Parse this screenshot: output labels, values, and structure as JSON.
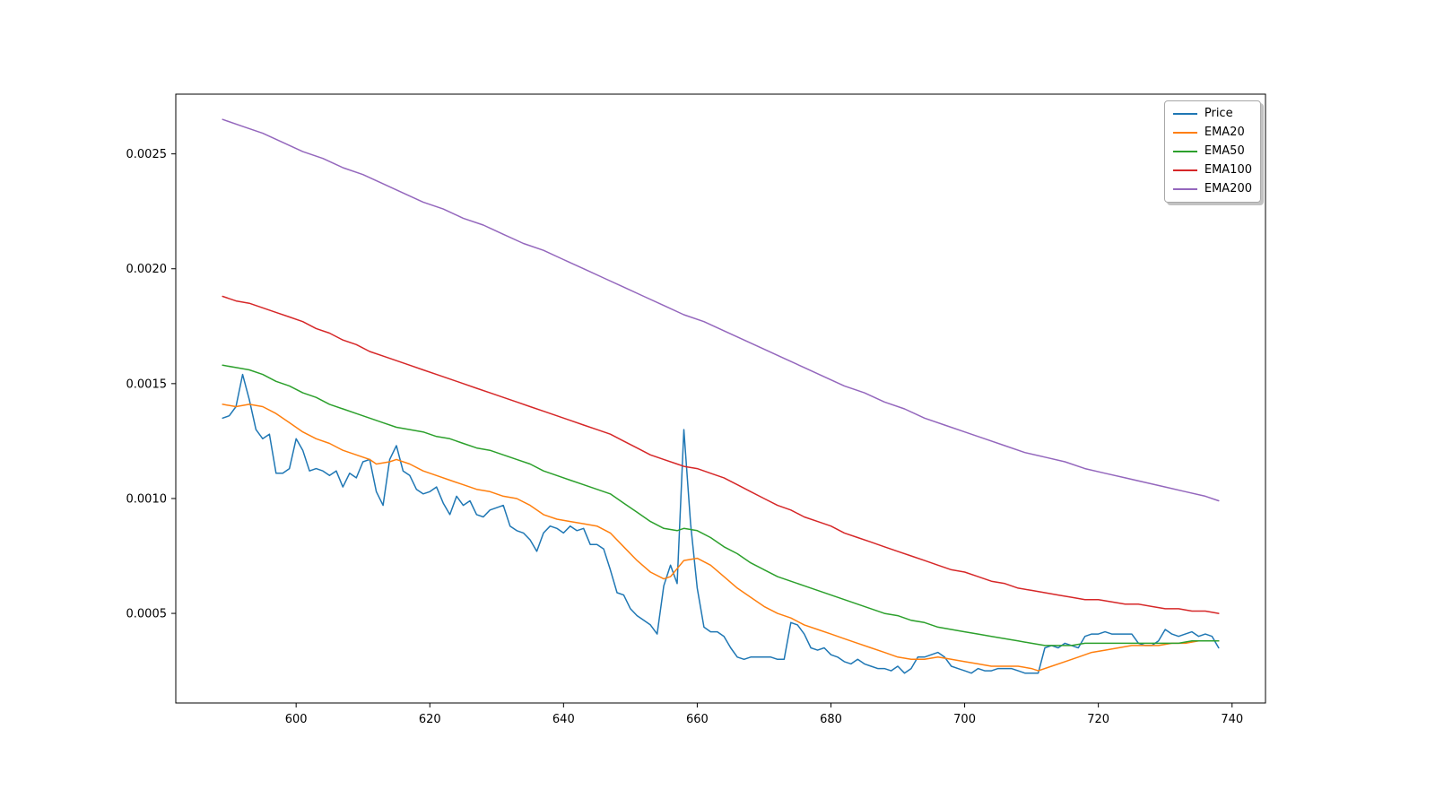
{
  "figure": {
    "background": "#ffffff",
    "plot_border_color": "#000000"
  },
  "legend": {
    "position": "upper right",
    "items": [
      {
        "label": "Price",
        "color": "#1f77b4"
      },
      {
        "label": "EMA20",
        "color": "#ff7f0e"
      },
      {
        "label": "EMA50",
        "color": "#2ca02c"
      },
      {
        "label": "EMA100",
        "color": "#d62728"
      },
      {
        "label": "EMA200",
        "color": "#9467bd"
      }
    ]
  },
  "chart_data": {
    "type": "line",
    "title": "",
    "xlabel": "",
    "ylabel": "",
    "grid": false,
    "legend_position": "upper right",
    "xlim": [
      582,
      745
    ],
    "ylim": [
      0.00011,
      0.00276
    ],
    "x_ticks": [
      600,
      620,
      640,
      660,
      680,
      700,
      720,
      740
    ],
    "y_ticks": [
      0.0005,
      0.001,
      0.0015,
      0.002,
      0.0025
    ],
    "series": [
      {
        "name": "Price",
        "color": "#1f77b4",
        "x_start": 589,
        "x_step": 1,
        "y": [
          0.00135,
          0.00136,
          0.0014,
          0.00154,
          0.00143,
          0.0013,
          0.00126,
          0.00128,
          0.00111,
          0.00111,
          0.00113,
          0.00126,
          0.00121,
          0.00112,
          0.00113,
          0.00112,
          0.0011,
          0.00112,
          0.00105,
          0.00111,
          0.00109,
          0.00116,
          0.00117,
          0.00103,
          0.00097,
          0.00117,
          0.00123,
          0.00112,
          0.0011,
          0.00104,
          0.00102,
          0.00103,
          0.00105,
          0.00098,
          0.00093,
          0.00101,
          0.00097,
          0.00099,
          0.00093,
          0.00092,
          0.00095,
          0.00096,
          0.00097,
          0.00088,
          0.00086,
          0.00085,
          0.00082,
          0.00077,
          0.00085,
          0.00088,
          0.00087,
          0.00085,
          0.00088,
          0.00086,
          0.00087,
          0.0008,
          0.0008,
          0.00078,
          0.00069,
          0.00059,
          0.00058,
          0.00052,
          0.00049,
          0.00047,
          0.00045,
          0.00041,
          0.00062,
          0.00071,
          0.00063,
          0.0013,
          0.00089,
          0.00061,
          0.00044,
          0.00042,
          0.00042,
          0.0004,
          0.00035,
          0.00031,
          0.0003,
          0.00031,
          0.00031,
          0.00031,
          0.00031,
          0.0003,
          0.0003,
          0.00046,
          0.00045,
          0.00041,
          0.00035,
          0.00034,
          0.00035,
          0.00032,
          0.00031,
          0.00029,
          0.00028,
          0.0003,
          0.00028,
          0.00027,
          0.00026,
          0.00026,
          0.00025,
          0.00027,
          0.00024,
          0.00026,
          0.00031,
          0.00031,
          0.00032,
          0.00033,
          0.00031,
          0.00027,
          0.00026,
          0.00025,
          0.00024,
          0.00026,
          0.00025,
          0.00025,
          0.00026,
          0.00026,
          0.00026,
          0.00025,
          0.00024,
          0.00024,
          0.00024,
          0.00035,
          0.00036,
          0.00035,
          0.00037,
          0.00036,
          0.00035,
          0.0004,
          0.00041,
          0.00041,
          0.00042,
          0.00041,
          0.00041,
          0.00041,
          0.00041,
          0.00037,
          0.00036,
          0.00036,
          0.00038,
          0.00043,
          0.00041,
          0.0004,
          0.00041,
          0.00042,
          0.0004,
          0.00041,
          0.0004,
          0.00035
        ]
      },
      {
        "name": "EMA20",
        "color": "#ff7f0e",
        "x": [
          589,
          591,
          593,
          595,
          597,
          599,
          601,
          603,
          605,
          607,
          609,
          611,
          612,
          614,
          615,
          617,
          619,
          621,
          623,
          625,
          627,
          629,
          631,
          633,
          635,
          637,
          639,
          641,
          643,
          645,
          647,
          649,
          651,
          653,
          655,
          656,
          658,
          660,
          662,
          664,
          666,
          668,
          670,
          672,
          674,
          676,
          678,
          680,
          682,
          684,
          686,
          688,
          690,
          692,
          694,
          696,
          698,
          700,
          702,
          704,
          706,
          708,
          710,
          711,
          713,
          715,
          717,
          719,
          721,
          723,
          725,
          727,
          729,
          731,
          733,
          735,
          738
        ],
        "y": [
          0.00141,
          0.0014,
          0.00141,
          0.0014,
          0.00137,
          0.00133,
          0.00129,
          0.00126,
          0.00124,
          0.00121,
          0.00119,
          0.00117,
          0.00115,
          0.00116,
          0.00117,
          0.00115,
          0.00112,
          0.0011,
          0.00108,
          0.00106,
          0.00104,
          0.00103,
          0.00101,
          0.001,
          0.00097,
          0.00093,
          0.00091,
          0.0009,
          0.00089,
          0.00088,
          0.00085,
          0.00079,
          0.00073,
          0.00068,
          0.00065,
          0.00066,
          0.00073,
          0.00074,
          0.00071,
          0.00066,
          0.00061,
          0.00057,
          0.00053,
          0.0005,
          0.00048,
          0.00045,
          0.00043,
          0.00041,
          0.00039,
          0.00037,
          0.00035,
          0.00033,
          0.00031,
          0.0003,
          0.0003,
          0.00031,
          0.0003,
          0.00029,
          0.00028,
          0.00027,
          0.00027,
          0.00027,
          0.00026,
          0.00025,
          0.00027,
          0.00029,
          0.00031,
          0.00033,
          0.00034,
          0.00035,
          0.00036,
          0.00036,
          0.00036,
          0.00037,
          0.00037,
          0.00038,
          0.00038
        ]
      },
      {
        "name": "EMA50",
        "color": "#2ca02c",
        "x": [
          589,
          591,
          593,
          595,
          597,
          599,
          601,
          603,
          605,
          607,
          609,
          611,
          613,
          615,
          617,
          619,
          621,
          623,
          625,
          627,
          629,
          631,
          633,
          635,
          637,
          639,
          641,
          643,
          645,
          647,
          649,
          651,
          653,
          655,
          657,
          658,
          660,
          662,
          664,
          666,
          668,
          670,
          672,
          674,
          676,
          678,
          680,
          682,
          684,
          686,
          688,
          690,
          692,
          694,
          696,
          698,
          700,
          702,
          704,
          706,
          708,
          710,
          712,
          714,
          716,
          718,
          720,
          722,
          724,
          726,
          728,
          730,
          732,
          734,
          736,
          738
        ],
        "y": [
          0.00158,
          0.00157,
          0.00156,
          0.00154,
          0.00151,
          0.00149,
          0.00146,
          0.00144,
          0.00141,
          0.00139,
          0.00137,
          0.00135,
          0.00133,
          0.00131,
          0.0013,
          0.00129,
          0.00127,
          0.00126,
          0.00124,
          0.00122,
          0.00121,
          0.00119,
          0.00117,
          0.00115,
          0.00112,
          0.0011,
          0.00108,
          0.00106,
          0.00104,
          0.00102,
          0.00098,
          0.00094,
          0.0009,
          0.00087,
          0.00086,
          0.00087,
          0.00086,
          0.00083,
          0.00079,
          0.00076,
          0.00072,
          0.00069,
          0.00066,
          0.00064,
          0.00062,
          0.0006,
          0.00058,
          0.00056,
          0.00054,
          0.00052,
          0.0005,
          0.00049,
          0.00047,
          0.00046,
          0.00044,
          0.00043,
          0.00042,
          0.00041,
          0.0004,
          0.00039,
          0.00038,
          0.00037,
          0.00036,
          0.00036,
          0.00036,
          0.00037,
          0.00037,
          0.00037,
          0.00037,
          0.00037,
          0.00037,
          0.00037,
          0.00037,
          0.00038,
          0.00038,
          0.00038
        ]
      },
      {
        "name": "EMA100",
        "color": "#d62728",
        "x": [
          589,
          591,
          593,
          595,
          597,
          599,
          601,
          603,
          605,
          607,
          609,
          611,
          613,
          615,
          617,
          619,
          621,
          623,
          625,
          627,
          629,
          631,
          633,
          635,
          637,
          639,
          641,
          643,
          645,
          647,
          649,
          651,
          653,
          655,
          657,
          658,
          660,
          662,
          664,
          666,
          668,
          670,
          672,
          674,
          676,
          678,
          680,
          682,
          684,
          686,
          688,
          690,
          692,
          694,
          696,
          698,
          700,
          702,
          704,
          706,
          708,
          710,
          712,
          714,
          716,
          718,
          720,
          722,
          724,
          726,
          728,
          730,
          732,
          734,
          736,
          738
        ],
        "y": [
          0.00188,
          0.00186,
          0.00185,
          0.00183,
          0.00181,
          0.00179,
          0.00177,
          0.00174,
          0.00172,
          0.00169,
          0.00167,
          0.00164,
          0.00162,
          0.0016,
          0.00158,
          0.00156,
          0.00154,
          0.00152,
          0.0015,
          0.00148,
          0.00146,
          0.00144,
          0.00142,
          0.0014,
          0.00138,
          0.00136,
          0.00134,
          0.00132,
          0.0013,
          0.00128,
          0.00125,
          0.00122,
          0.00119,
          0.00117,
          0.00115,
          0.00114,
          0.00113,
          0.00111,
          0.00109,
          0.00106,
          0.00103,
          0.001,
          0.00097,
          0.00095,
          0.00092,
          0.0009,
          0.00088,
          0.00085,
          0.00083,
          0.00081,
          0.00079,
          0.00077,
          0.00075,
          0.00073,
          0.00071,
          0.00069,
          0.00068,
          0.00066,
          0.00064,
          0.00063,
          0.00061,
          0.0006,
          0.00059,
          0.00058,
          0.00057,
          0.00056,
          0.00056,
          0.00055,
          0.00054,
          0.00054,
          0.00053,
          0.00052,
          0.00052,
          0.00051,
          0.00051,
          0.0005
        ]
      },
      {
        "name": "EMA200",
        "color": "#9467bd",
        "x": [
          589,
          592,
          595,
          598,
          601,
          604,
          607,
          610,
          613,
          616,
          619,
          622,
          625,
          628,
          631,
          634,
          637,
          640,
          643,
          646,
          649,
          652,
          655,
          658,
          661,
          664,
          667,
          670,
          673,
          676,
          679,
          682,
          685,
          688,
          691,
          694,
          697,
          700,
          703,
          706,
          709,
          712,
          715,
          718,
          721,
          724,
          727,
          730,
          733,
          736,
          738
        ],
        "y": [
          0.00265,
          0.00262,
          0.00259,
          0.00255,
          0.00251,
          0.00248,
          0.00244,
          0.00241,
          0.00237,
          0.00233,
          0.00229,
          0.00226,
          0.00222,
          0.00219,
          0.00215,
          0.00211,
          0.00208,
          0.00204,
          0.002,
          0.00196,
          0.00192,
          0.00188,
          0.00184,
          0.0018,
          0.00177,
          0.00173,
          0.00169,
          0.00165,
          0.00161,
          0.00157,
          0.00153,
          0.00149,
          0.00146,
          0.00142,
          0.00139,
          0.00135,
          0.00132,
          0.00129,
          0.00126,
          0.00123,
          0.0012,
          0.00118,
          0.00116,
          0.00113,
          0.00111,
          0.00109,
          0.00107,
          0.00105,
          0.00103,
          0.00101,
          0.00099
        ]
      }
    ]
  }
}
